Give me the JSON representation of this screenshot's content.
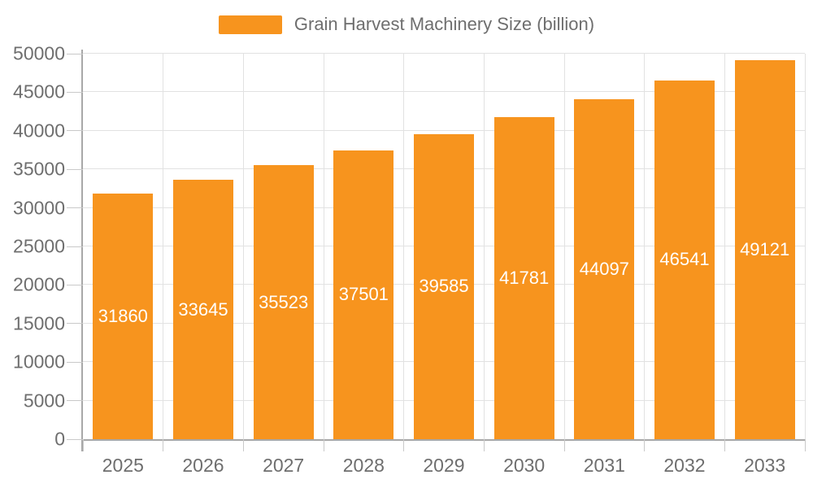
{
  "chart_data": {
    "type": "bar",
    "title": "Grain Harvest Machinery Size (billion)",
    "legend": {
      "position": "top",
      "items": [
        "Grain Harvest Machinery Size (billion)"
      ]
    },
    "categories": [
      "2025",
      "2026",
      "2027",
      "2028",
      "2029",
      "2030",
      "2031",
      "2032",
      "2033"
    ],
    "values": [
      31860,
      33645,
      35523,
      37501,
      39585,
      41781,
      44097,
      46541,
      49121
    ],
    "series": [
      {
        "name": "Grain Harvest Machinery Size (billion)",
        "values": [
          31860,
          33645,
          35523,
          37501,
          39585,
          41781,
          44097,
          46541,
          49121
        ]
      }
    ],
    "xlabel": "",
    "ylabel": "",
    "ylim": [
      0,
      50000
    ],
    "yticks": [
      0,
      5000,
      10000,
      15000,
      20000,
      25000,
      30000,
      35000,
      40000,
      45000,
      50000
    ],
    "grid": true,
    "bar_label_position": "inside-center",
    "colors": {
      "bar": "#F7941E",
      "bar_label": "#FFFFFF",
      "axis_text": "#6E6E6E",
      "grid": "#E2E2E2",
      "tick": "#C9C9C9",
      "axis_line": "#A8A8A8",
      "background": "#FFFFFF"
    }
  }
}
